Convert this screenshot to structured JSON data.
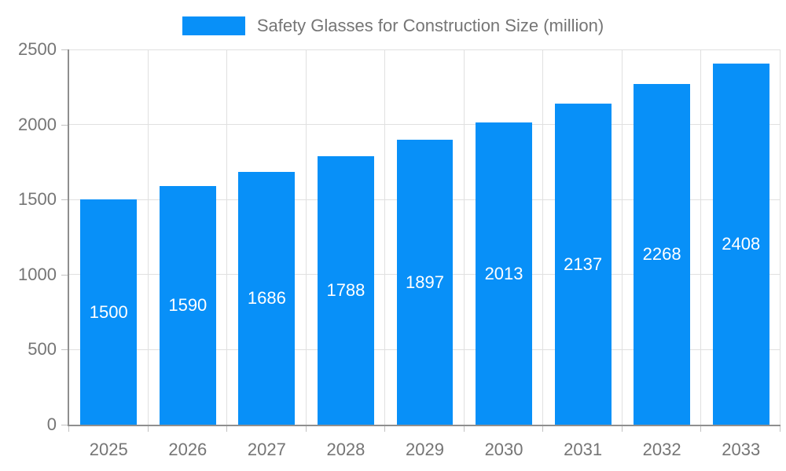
{
  "chart_data": {
    "type": "bar",
    "title": "Safety Glasses for Construction Size (million)",
    "legend": [
      "Safety Glasses for Construction Size (million)"
    ],
    "legend_position": "top",
    "categories": [
      "2025",
      "2026",
      "2027",
      "2028",
      "2029",
      "2030",
      "2031",
      "2032",
      "2033"
    ],
    "values": [
      1500,
      1590,
      1686,
      1788,
      1897,
      2013,
      2137,
      2268,
      2408
    ],
    "xlabel": "",
    "ylabel": "",
    "ylim": [
      0,
      2500
    ],
    "yticks": [
      0,
      500,
      1000,
      1500,
      2000,
      2500
    ],
    "grid": true,
    "colors": {
      "bar": "#0890f8",
      "bar_label": "#ffffff",
      "axis_text": "#757575",
      "axis_line": "#8f8f8f",
      "gridline": "#e0e0e0"
    }
  }
}
